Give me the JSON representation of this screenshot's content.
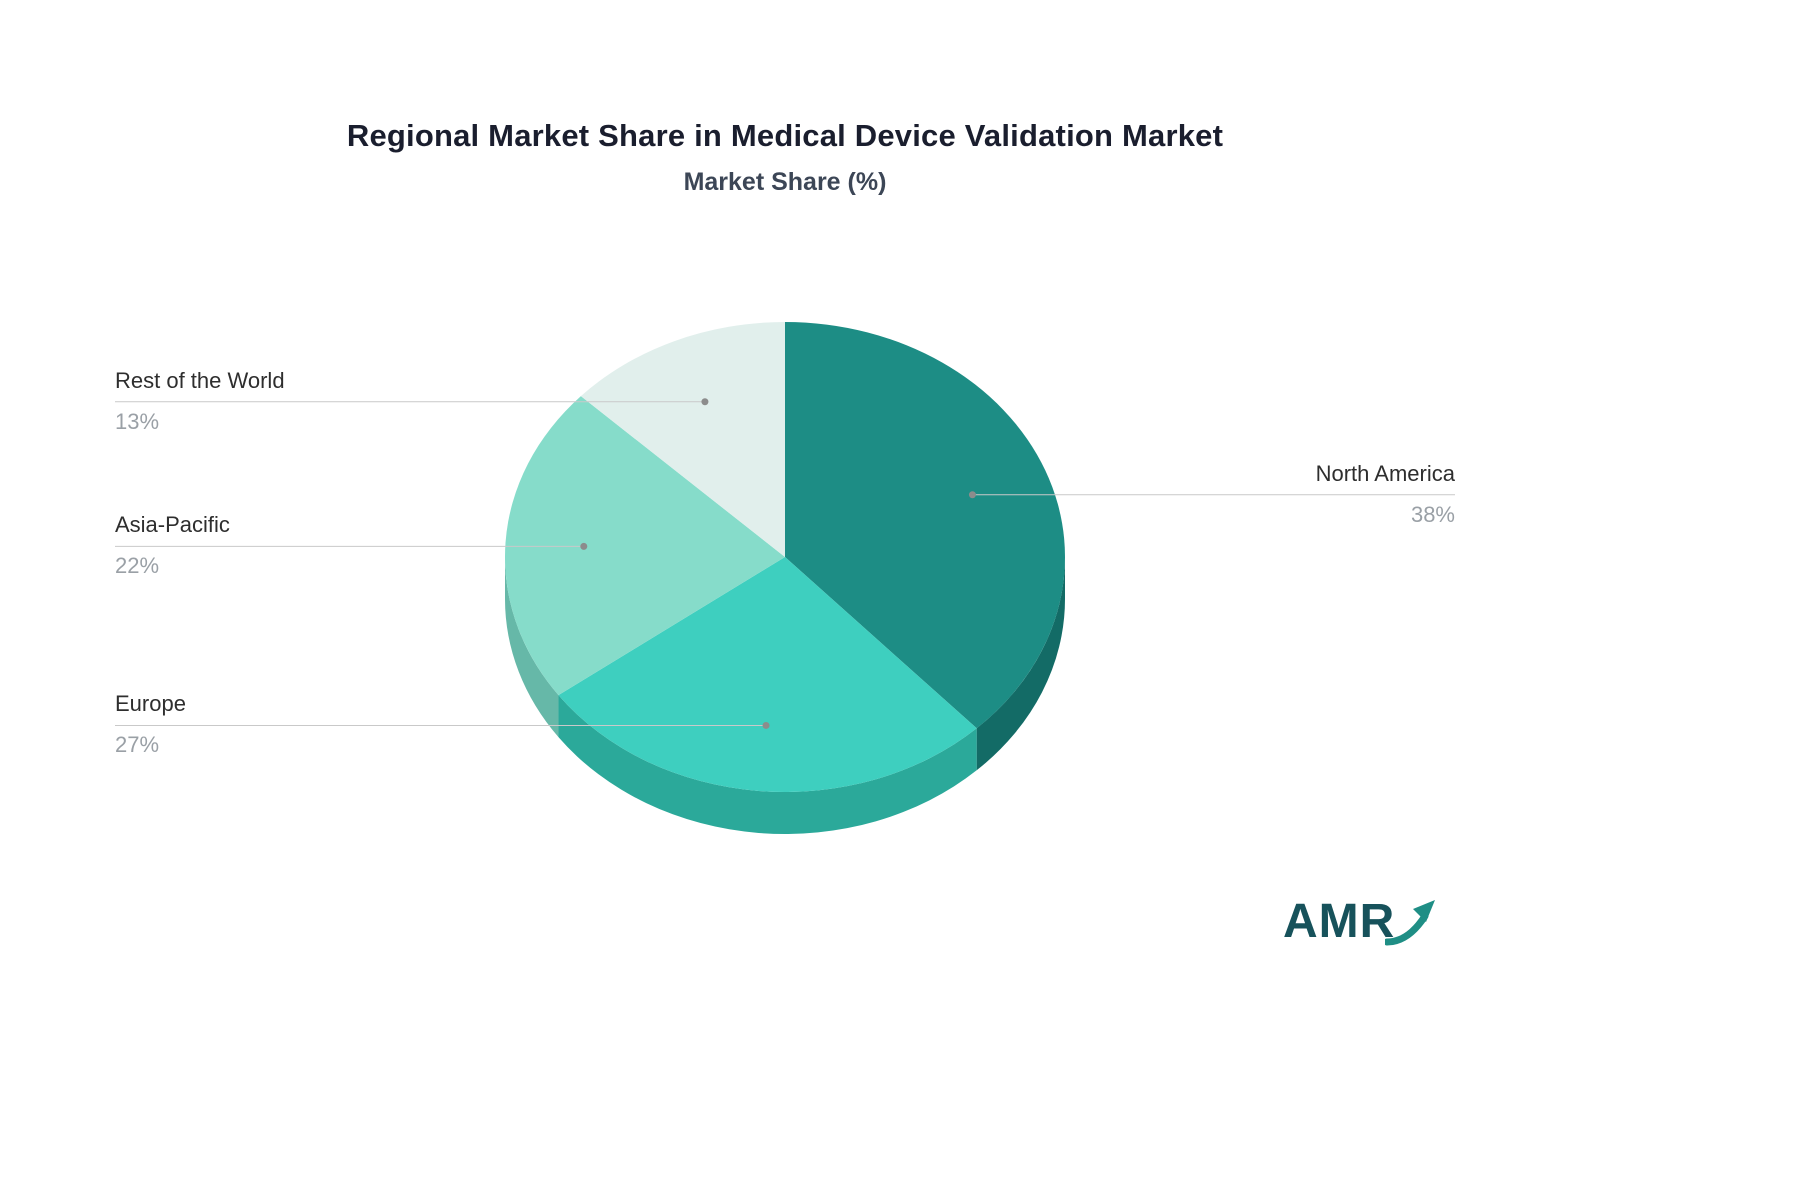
{
  "page": {
    "title": "Regional Market Share in Medical Device Validation Market",
    "subtitle": "Market Share (%)"
  },
  "logo": {
    "text": "AMR",
    "text_color": "#17525b",
    "arrow_color": "#1f8e85"
  },
  "chart_data": {
    "type": "pie",
    "title": "Regional Market Share in Medical Device Validation Market",
    "subtitle": "Market Share (%)",
    "unit": "%",
    "effect": "3d",
    "direction": "clockwise",
    "start_angle_deg": 0,
    "legend_position": "none",
    "label_style": "callout",
    "labels": [
      "North America",
      "Europe",
      "Asia-Pacific",
      "Rest of the World"
    ],
    "values": [
      38,
      27,
      22,
      13
    ],
    "value_labels": [
      "38%",
      "27%",
      "22%",
      "13%"
    ],
    "colors": [
      "#1d8d85",
      "#3ecfbf",
      "#86dcca",
      "#e1efec"
    ],
    "side_colors": [
      "#136b66",
      "#2ba99a",
      "#66b8a8",
      "#bfd6d1"
    ],
    "callout": {
      "line_color": "#c9c9c9",
      "dot_color": "#8c8c8c",
      "name_color": "#2e2e2e",
      "value_color": "#9aa0a6"
    }
  }
}
